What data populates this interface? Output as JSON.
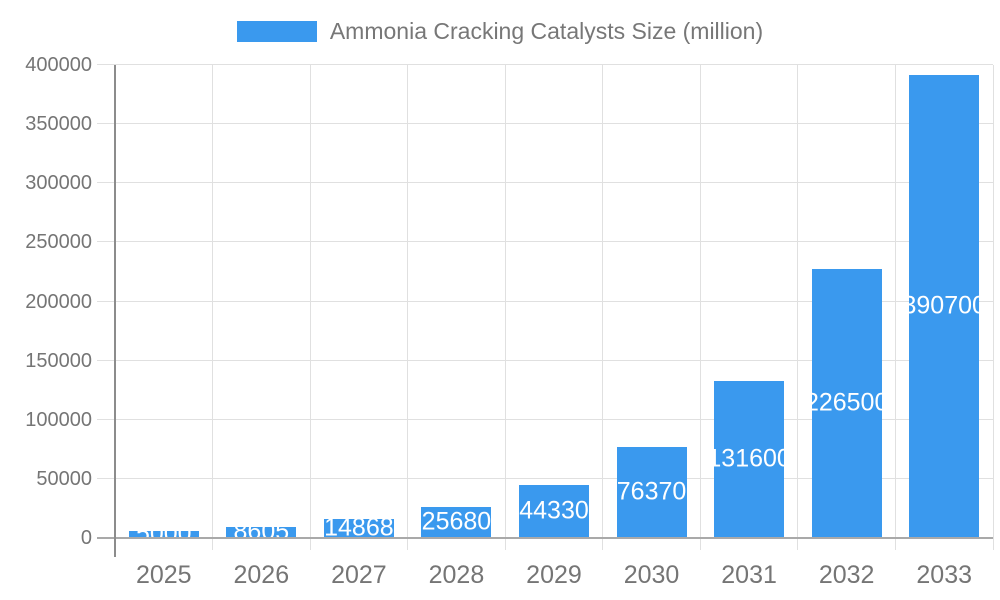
{
  "legend": {
    "series_label": "Ammonia Cracking Catalysts Size (million)"
  },
  "chart_data": {
    "type": "bar",
    "title": "Ammonia Cracking Catalysts Size (million)",
    "categories": [
      "2025",
      "2026",
      "2027",
      "2028",
      "2029",
      "2030",
      "2031",
      "2032",
      "2033"
    ],
    "values": [
      5000,
      8605,
      14868,
      25680,
      44330,
      76370,
      131600,
      226500,
      390700
    ],
    "data_labels_visible": true,
    "xlabel": "",
    "ylabel": "",
    "ylim": [
      0,
      400000
    ],
    "y_ticks": [
      0,
      50000,
      100000,
      150000,
      200000,
      250000,
      300000,
      350000,
      400000
    ],
    "grid": true,
    "legend_position": "top-center",
    "colors": {
      "bar": "#3A99EE",
      "bar_label_text": "#FFFFFF",
      "tick_text": "#757575",
      "title_text": "#777777",
      "gridline": "#E0E0E0",
      "x_axis_line": "#A9A9A9",
      "y_axis_line": "#8C8C8C"
    }
  }
}
